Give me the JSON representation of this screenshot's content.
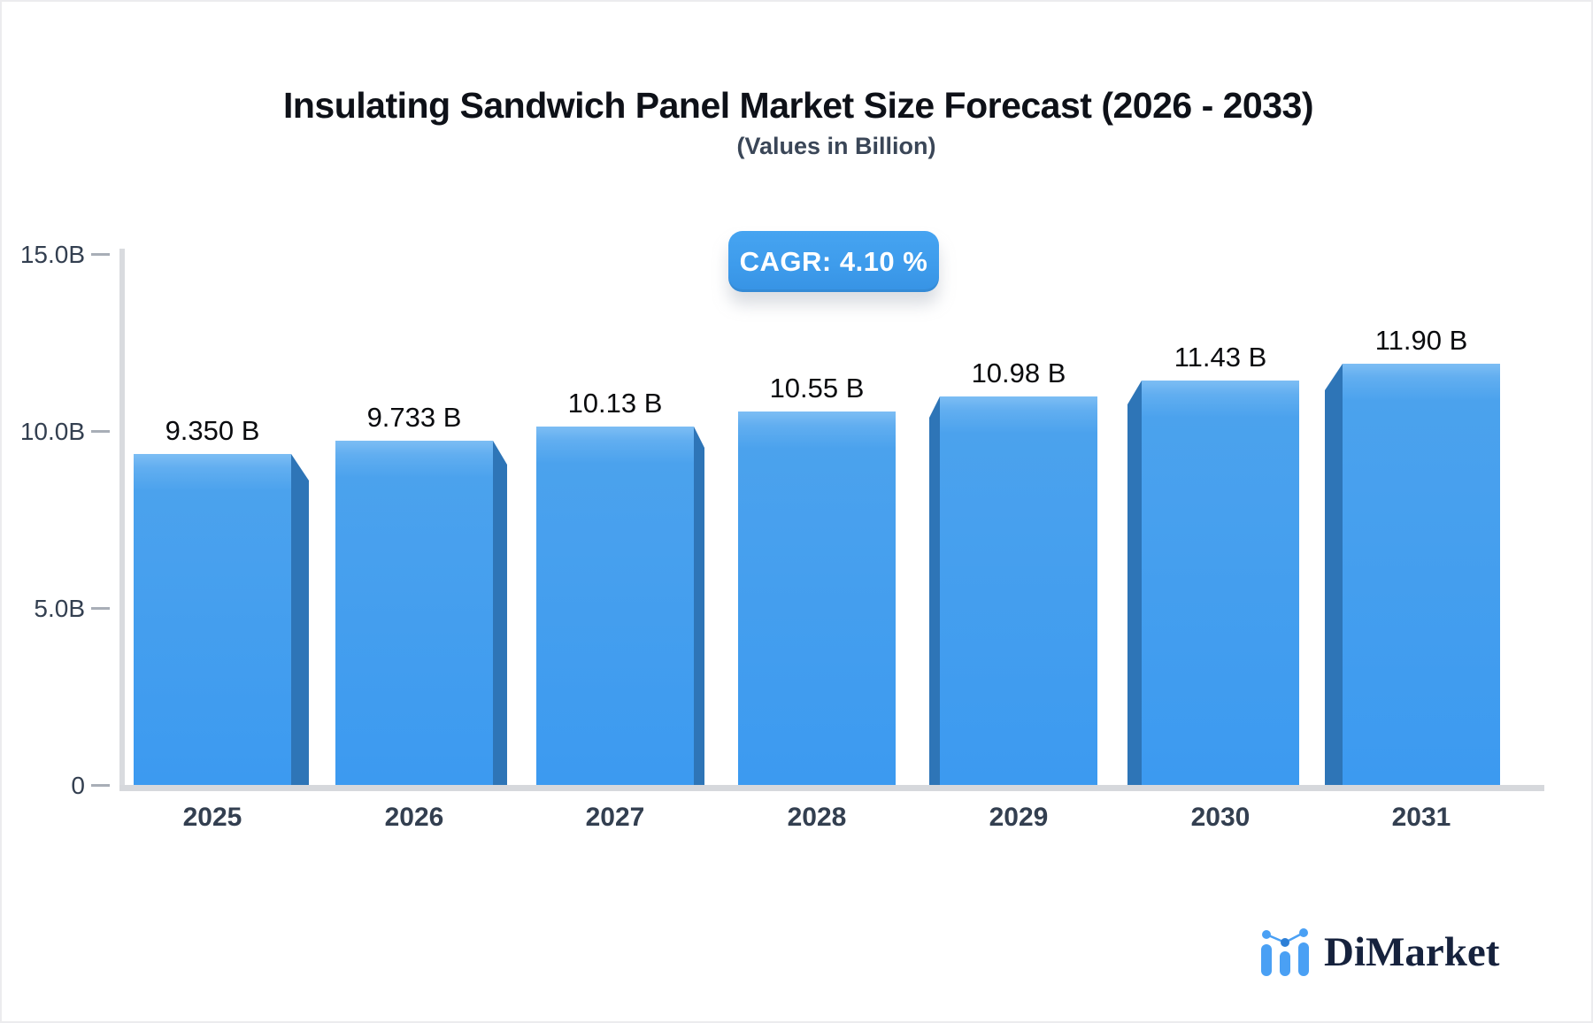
{
  "title": "Insulating Sandwich Panel Market Size Forecast (2026 - 2033)",
  "subtitle": "(Values in Billion)",
  "badge": {
    "label": "CAGR: 4.10 %"
  },
  "chart_data": {
    "type": "bar",
    "title": "Insulating Sandwich Panel Market Size Forecast (2026 - 2033)",
    "subtitle": "(Values in Billion)",
    "unit": "Billion",
    "categories": [
      "2025",
      "2026",
      "2027",
      "2028",
      "2029",
      "2030",
      "2031"
    ],
    "values": [
      9.35,
      9.733,
      10.13,
      10.55,
      10.98,
      11.43,
      11.9
    ],
    "value_labels": [
      "9.350 B",
      "9.733 B",
      "10.13 B",
      "10.55 B",
      "10.98 B",
      "11.43 B",
      "11.90 B"
    ],
    "cagr": "4.10 %",
    "ylim": [
      0,
      15
    ],
    "y_ticks": [
      {
        "value": 15,
        "label": "15.0B"
      },
      {
        "value": 10,
        "label": "10.0B"
      },
      {
        "value": 5,
        "label": "5.0B"
      },
      {
        "value": 0,
        "label": "0"
      }
    ],
    "grid": false,
    "legend": "none",
    "colors": {
      "bar_fill": "#429CEC",
      "bar_fill_light": "#7DBEF4",
      "bar_side": "#2E75B7",
      "axis": "#D9DBDF",
      "tick_text": "#333F50",
      "value_text": "#0A0B0E",
      "badge_bg": "#3E9CEC",
      "badge_text": "#FFFFFF"
    }
  },
  "footer": {
    "brand": "DiMarket",
    "logo_icon": "bar-line-chart-icon",
    "brand_color": "#16223D",
    "icon_color": "#4AA0F4"
  }
}
